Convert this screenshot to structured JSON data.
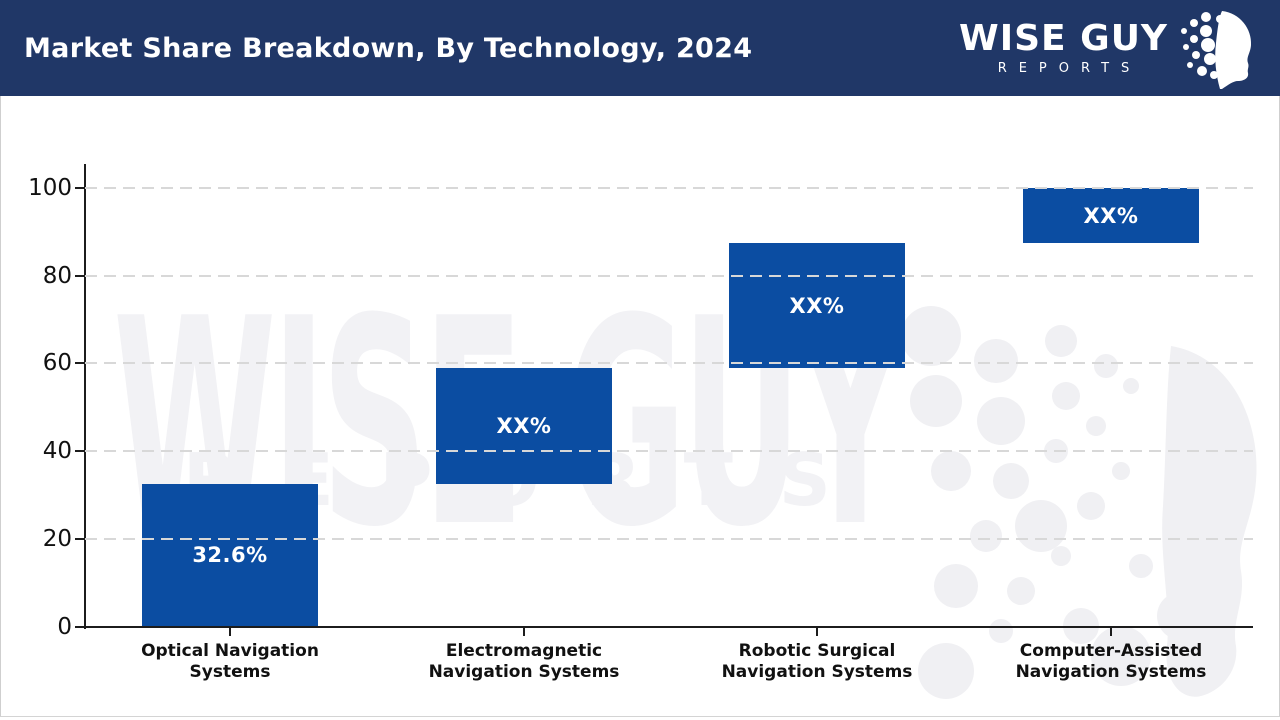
{
  "header": {
    "title": "Market Share Breakdown, By Technology, 2024",
    "bg_color": "#203767",
    "logo": {
      "line1": "WISE GUY",
      "line2": "REPORTS"
    }
  },
  "watermark": {
    "line1": "WISE GUY",
    "line2": "REPORTS"
  },
  "chart_data": {
    "type": "bar",
    "subtype": "waterfall",
    "title": "Market Share Breakdown, By Technology, 2024",
    "xlabel": "",
    "ylabel": "",
    "ylim": [
      0,
      105
    ],
    "yticks": [
      0,
      20,
      40,
      60,
      80,
      100
    ],
    "grid": "dashed-horizontal",
    "legend": "none",
    "bar_color": "#0B4DA2",
    "grid_color": "#D8D8D8",
    "label_color": "#FFFFFF",
    "categories": [
      "Optical Navigation Systems",
      "Electromagnetic Navigation Systems",
      "Robotic Surgical Navigation Systems",
      "Computer-Assisted Navigation Systems"
    ],
    "category_lines": [
      [
        "Optical Navigation",
        "Systems"
      ],
      [
        "Electromagnetic",
        "Navigation Systems"
      ],
      [
        "Robotic Surgical",
        "Navigation Systems"
      ],
      [
        "Computer-Assisted",
        "Navigation Systems"
      ]
    ],
    "segments": [
      {
        "label": "32.6%",
        "start": 0,
        "end": 32.6
      },
      {
        "label": "XX%",
        "start": 32.6,
        "end": 59.0
      },
      {
        "label": "XX%",
        "start": 59.0,
        "end": 87.4
      },
      {
        "label": "XX%",
        "start": 87.4,
        "end": 100
      }
    ]
  }
}
